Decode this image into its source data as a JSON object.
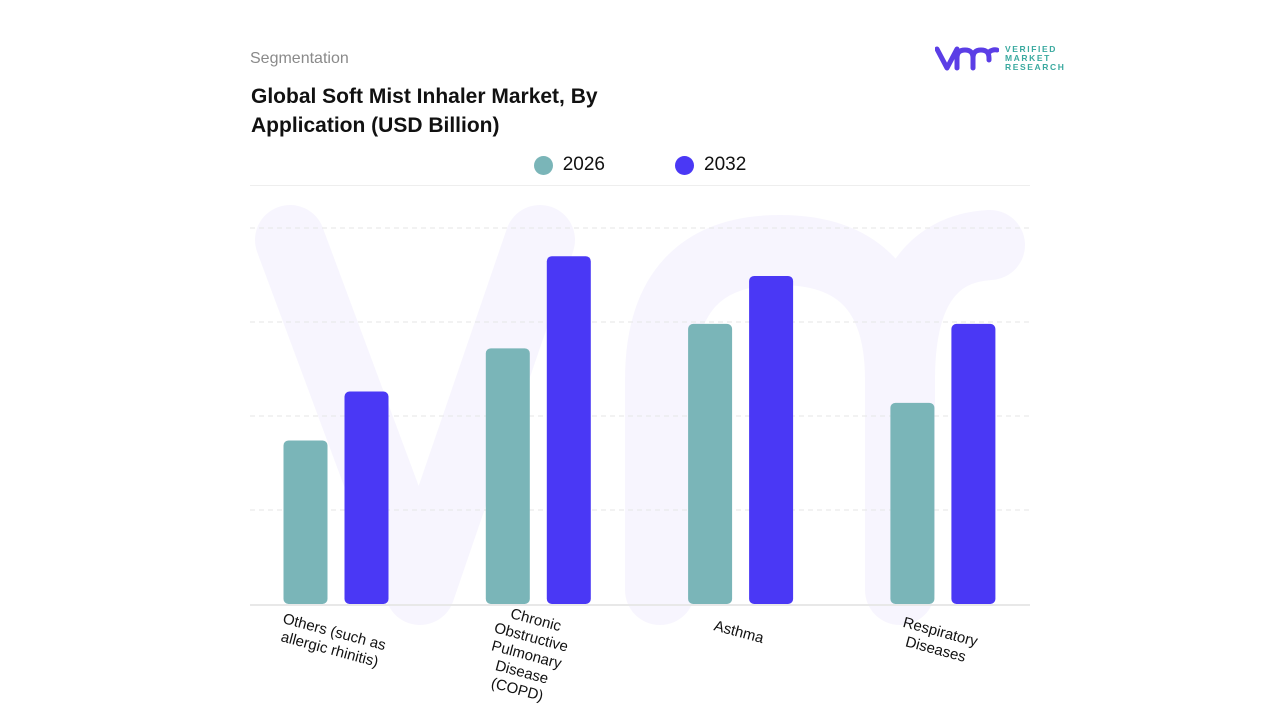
{
  "header": {
    "segment_label": "Segmentation",
    "title": "Global Soft Mist Inhaler Market, By Application (USD Billion)"
  },
  "logo": {
    "line1": "VERIFIED",
    "line2": "MARKET",
    "line3": "RESEARCH",
    "colors": {
      "mark": "#5b3ee6",
      "text": "#3aa99f"
    }
  },
  "chart_data": {
    "type": "bar",
    "title": "Global Soft Mist Inhaler Market, By Application (USD Billion)",
    "categories": [
      "Others (such as allergic rhinitis)",
      "Chronic Obstructive Pulmonary Disease (COPD)",
      "Asthma",
      "Respiratory Diseases"
    ],
    "series": [
      {
        "name": "2026",
        "color": "#7ab5b8",
        "values": [
          1.74,
          2.72,
          2.98,
          2.14
        ]
      },
      {
        "name": "2032",
        "color": "#4a38f5",
        "values": [
          2.26,
          3.7,
          3.49,
          2.98
        ]
      }
    ],
    "ylim": [
      0,
      4
    ],
    "y_ticks_labeled": false,
    "grid": true,
    "legend_position": "top"
  }
}
